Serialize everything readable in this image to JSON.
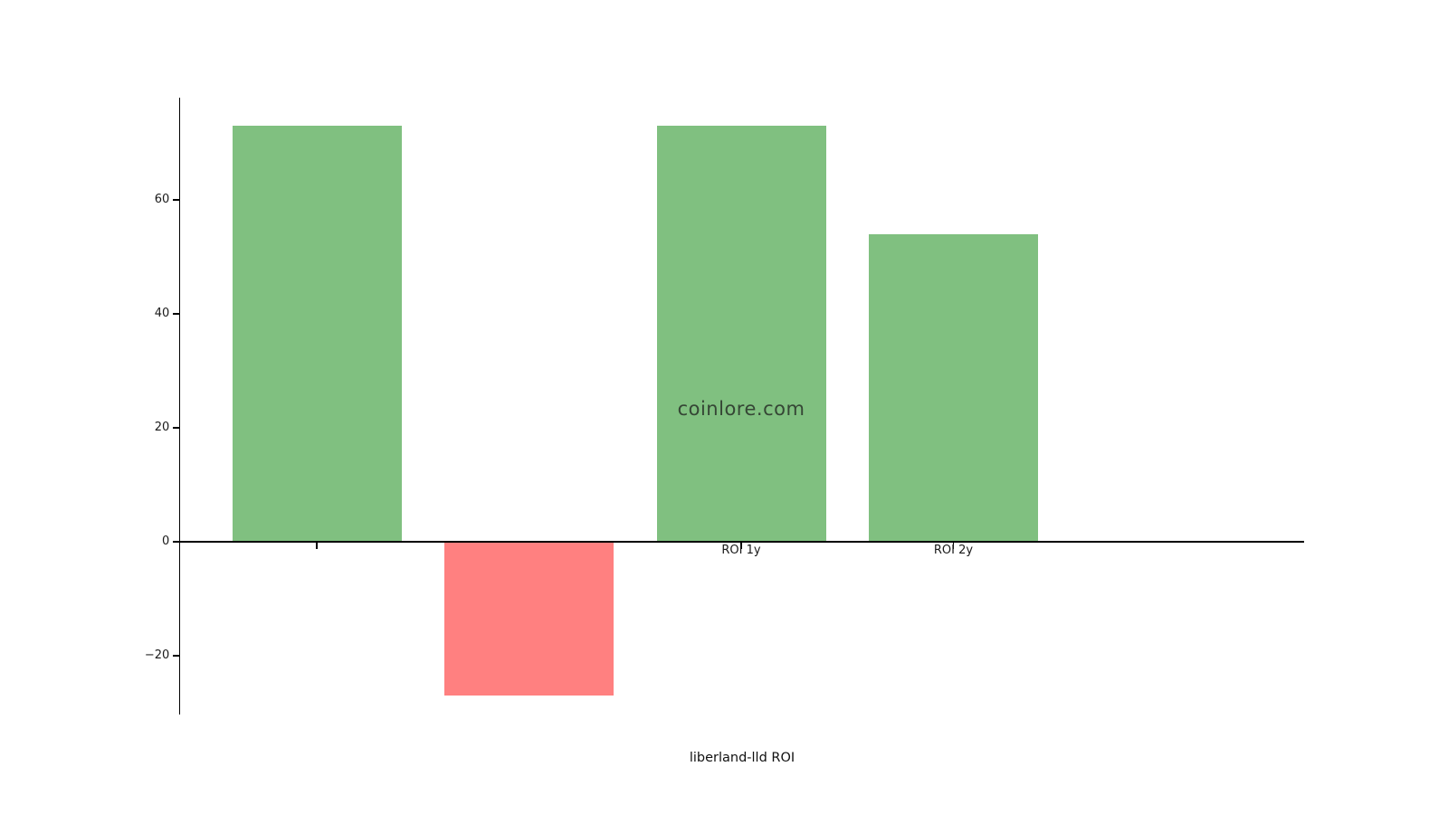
{
  "page": {
    "background_color": "#ffffff"
  },
  "watermark": {
    "text": "coinlore.com"
  },
  "chart_data": {
    "type": "bar",
    "title": "liberland-lld ROI",
    "categories": [
      "",
      "",
      "ROI 1y",
      "ROI 2y"
    ],
    "values": [
      73,
      -27,
      73,
      54
    ],
    "bar_colors": [
      "#80c080",
      "#ff8080",
      "#80c080",
      "#80c080"
    ],
    "positive_color": "#80c080",
    "negative_color": "#ff8080",
    "yticks": [
      -20,
      0,
      20,
      40,
      60
    ],
    "ytick_labels": [
      "−20",
      "0",
      "20",
      "40",
      "60"
    ],
    "ylim": [
      -30.3,
      77.9
    ],
    "xlabel": "",
    "ylabel": "",
    "grid": false,
    "legend": "none",
    "axis_color": "#000000",
    "tick_label_color": "#1a1a1a"
  }
}
